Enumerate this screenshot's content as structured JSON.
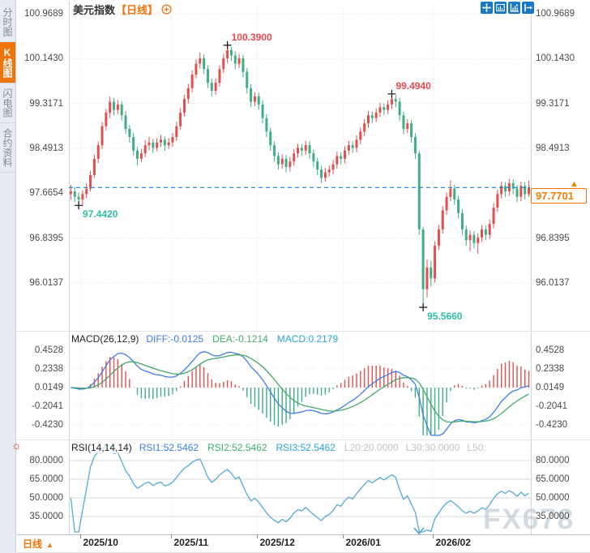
{
  "sidebar": {
    "tabs": [
      {
        "label": "分时图",
        "active": false
      },
      {
        "label": "K线图",
        "active": true
      },
      {
        "label": "闪电图",
        "active": false
      },
      {
        "label": "合约资料",
        "active": false
      }
    ]
  },
  "header": {
    "symbol": "美元指数",
    "period_tag": "【日线】",
    "toolbar_icons": [
      "move-icon",
      "zoom-area-icon",
      "scale-chart-icon",
      "exit-chart-icon"
    ],
    "add_icon": "plus-circle-icon"
  },
  "price_tag": {
    "text": "97.7701",
    "arrow": "▲"
  },
  "bottom_bar": {
    "period_label": "日线",
    "period_arrow": "▲"
  },
  "watermark": "FX678",
  "indicators": {
    "macd": {
      "name": "MACD(26,12,9)",
      "diff_label": "DIFF:-0.0125",
      "dea_label": "DEA:-0.1214",
      "macd_label": "MACD:0.2179",
      "axis_labels": [
        "0.4528",
        "0.2338",
        "0.0149",
        "-0.2041",
        "-0.4230"
      ]
    },
    "rsi": {
      "name": "RSI(14,14,14)",
      "rsi1_label": "RSI1:52.5462",
      "rsi2_label": "RSI2:52.5462",
      "rsi3_label": "RSI3:52.5462",
      "l20_label": "L20:20.0000",
      "l30_label": "L30:30.0000",
      "l50_label": "L50:",
      "axis_labels": [
        "80.0000",
        "65.0000",
        "50.0000",
        "35.0000"
      ]
    }
  },
  "chart_data": {
    "type": "candlestick",
    "title": "美元指数",
    "timeframe": "日线",
    "current_price": 97.7701,
    "y_axis_labels": [
      "100.9689",
      "100.1430",
      "99.3171",
      "98.4913",
      "97.6654",
      "96.8395",
      "96.0137"
    ],
    "months": [
      {
        "label": "2025/10",
        "index": 3
      },
      {
        "label": "2025/11",
        "index": 26
      },
      {
        "label": "2025/12",
        "index": 48
      },
      {
        "label": "2026/01",
        "index": 70
      },
      {
        "label": "2026/02",
        "index": 93
      }
    ],
    "annotations": [
      {
        "index": 40,
        "price": 100.39,
        "label": "100.3900",
        "color": "red",
        "pos": "above"
      },
      {
        "index": 82,
        "price": 99.494,
        "label": "99.4940",
        "color": "red",
        "pos": "above"
      },
      {
        "index": 2,
        "price": 97.442,
        "label": "97.4420",
        "color": "green",
        "pos": "below"
      },
      {
        "index": 90,
        "price": 95.566,
        "label": "95.5660",
        "color": "green",
        "pos": "below"
      }
    ],
    "colors": {
      "up": "#e0504e",
      "down": "#3fae87",
      "price_line": "#1f7fd6",
      "diff_line": "#3f7de8",
      "dea_line": "#43a969",
      "rsi_line": "#55aad5",
      "accent": "#f0730a"
    },
    "rsi_gridlines": [
      80,
      65,
      50,
      35
    ],
    "candles": [
      [
        97.65,
        97.82,
        97.55,
        97.7
      ],
      [
        97.7,
        97.78,
        97.5,
        97.6
      ],
      [
        97.6,
        97.68,
        97.442,
        97.55
      ],
      [
        97.55,
        97.72,
        97.45,
        97.65
      ],
      [
        97.65,
        97.85,
        97.58,
        97.75
      ],
      [
        97.75,
        98.08,
        97.7,
        98.0
      ],
      [
        98.0,
        98.38,
        97.95,
        98.3
      ],
      [
        98.3,
        98.62,
        98.22,
        98.55
      ],
      [
        98.55,
        98.98,
        98.48,
        98.9
      ],
      [
        98.9,
        99.22,
        98.82,
        99.15
      ],
      [
        99.15,
        99.45,
        99.05,
        99.35
      ],
      [
        99.35,
        99.42,
        99.1,
        99.2
      ],
      [
        99.2,
        99.38,
        99.12,
        99.3
      ],
      [
        99.3,
        99.36,
        99.0,
        99.1
      ],
      [
        99.1,
        99.18,
        98.76,
        98.85
      ],
      [
        98.85,
        98.92,
        98.6,
        98.7
      ],
      [
        98.7,
        98.78,
        98.36,
        98.45
      ],
      [
        98.45,
        98.52,
        98.18,
        98.3
      ],
      [
        98.3,
        98.48,
        98.24,
        98.4
      ],
      [
        98.4,
        98.64,
        98.33,
        98.55
      ],
      [
        98.55,
        98.7,
        98.46,
        98.6
      ],
      [
        98.6,
        98.67,
        98.4,
        98.5
      ],
      [
        98.5,
        98.68,
        98.44,
        98.6
      ],
      [
        98.6,
        98.74,
        98.52,
        98.65
      ],
      [
        98.65,
        98.71,
        98.45,
        98.55
      ],
      [
        98.55,
        98.68,
        98.48,
        98.6
      ],
      [
        98.6,
        98.78,
        98.52,
        98.7
      ],
      [
        98.7,
        98.98,
        98.63,
        98.9
      ],
      [
        98.9,
        99.23,
        98.83,
        99.15
      ],
      [
        99.15,
        99.48,
        99.08,
        99.4
      ],
      [
        99.4,
        99.68,
        99.32,
        99.6
      ],
      [
        99.6,
        99.93,
        99.52,
        99.85
      ],
      [
        99.85,
        100.13,
        99.78,
        100.05
      ],
      [
        100.05,
        100.25,
        99.96,
        100.15
      ],
      [
        100.15,
        100.22,
        99.86,
        99.95
      ],
      [
        99.95,
        100.02,
        99.6,
        99.7
      ],
      [
        99.7,
        99.78,
        99.45,
        99.55
      ],
      [
        99.55,
        99.78,
        99.48,
        99.7
      ],
      [
        99.7,
        100.02,
        99.63,
        99.95
      ],
      [
        99.95,
        100.23,
        99.88,
        100.15
      ],
      [
        100.15,
        100.39,
        100.06,
        100.3
      ],
      [
        100.3,
        100.36,
        100.1,
        100.2
      ],
      [
        100.2,
        100.28,
        99.95,
        100.05
      ],
      [
        100.05,
        100.23,
        99.97,
        100.15
      ],
      [
        100.15,
        100.21,
        99.8,
        99.9
      ],
      [
        99.9,
        99.97,
        99.5,
        99.6
      ],
      [
        99.6,
        99.67,
        99.25,
        99.35
      ],
      [
        99.35,
        99.53,
        99.27,
        99.45
      ],
      [
        99.45,
        99.52,
        99.2,
        99.3
      ],
      [
        99.3,
        99.37,
        98.95,
        99.05
      ],
      [
        99.05,
        99.12,
        98.7,
        98.8
      ],
      [
        98.8,
        98.87,
        98.45,
        98.55
      ],
      [
        98.55,
        98.62,
        98.25,
        98.35
      ],
      [
        98.35,
        98.42,
        98.1,
        98.2
      ],
      [
        98.2,
        98.38,
        98.12,
        98.3
      ],
      [
        98.3,
        98.37,
        98.05,
        98.15
      ],
      [
        98.15,
        98.33,
        98.07,
        98.25
      ],
      [
        98.25,
        98.48,
        98.17,
        98.4
      ],
      [
        98.4,
        98.58,
        98.32,
        98.5
      ],
      [
        98.5,
        98.57,
        98.35,
        98.45
      ],
      [
        98.45,
        98.63,
        98.37,
        98.55
      ],
      [
        98.55,
        98.62,
        98.3,
        98.4
      ],
      [
        98.4,
        98.47,
        98.15,
        98.25
      ],
      [
        98.25,
        98.32,
        98.0,
        98.1
      ],
      [
        98.1,
        98.17,
        97.85,
        97.95
      ],
      [
        97.95,
        98.13,
        97.88,
        98.05
      ],
      [
        98.05,
        98.18,
        97.97,
        98.1
      ],
      [
        98.1,
        98.28,
        98.02,
        98.2
      ],
      [
        98.2,
        98.43,
        98.12,
        98.35
      ],
      [
        98.35,
        98.42,
        98.2,
        98.3
      ],
      [
        98.3,
        98.53,
        98.22,
        98.45
      ],
      [
        98.45,
        98.63,
        98.37,
        98.55
      ],
      [
        98.55,
        98.62,
        98.4,
        98.5
      ],
      [
        98.5,
        98.73,
        98.42,
        98.65
      ],
      [
        98.65,
        98.88,
        98.57,
        98.8
      ],
      [
        98.8,
        99.03,
        98.72,
        98.95
      ],
      [
        98.95,
        99.18,
        98.87,
        99.1
      ],
      [
        99.1,
        99.17,
        98.95,
        99.05
      ],
      [
        99.05,
        99.23,
        98.97,
        99.15
      ],
      [
        99.15,
        99.33,
        99.07,
        99.25
      ],
      [
        99.25,
        99.32,
        99.1,
        99.2
      ],
      [
        99.2,
        99.38,
        99.12,
        99.3
      ],
      [
        99.3,
        99.494,
        99.22,
        99.4
      ],
      [
        99.4,
        99.47,
        99.25,
        99.35
      ],
      [
        99.35,
        99.42,
        99.0,
        99.1
      ],
      [
        99.1,
        99.17,
        98.75,
        98.85
      ],
      [
        98.85,
        99.03,
        98.77,
        98.95
      ],
      [
        98.95,
        99.02,
        98.6,
        98.7
      ],
      [
        98.7,
        98.77,
        98.3,
        98.4
      ],
      [
        98.4,
        98.45,
        96.9,
        97.0
      ],
      [
        97.0,
        97.05,
        95.566,
        95.9
      ],
      [
        95.9,
        96.45,
        95.75,
        96.3
      ],
      [
        96.3,
        96.42,
        95.95,
        96.1
      ],
      [
        96.1,
        96.78,
        96.02,
        96.7
      ],
      [
        96.7,
        97.08,
        96.62,
        97.0
      ],
      [
        97.0,
        97.43,
        96.92,
        97.35
      ],
      [
        97.35,
        97.68,
        97.27,
        97.6
      ],
      [
        97.6,
        97.9,
        97.52,
        97.75
      ],
      [
        97.75,
        97.82,
        97.45,
        97.55
      ],
      [
        97.55,
        97.62,
        97.2,
        97.3
      ],
      [
        97.3,
        97.37,
        96.9,
        97.0
      ],
      [
        97.0,
        97.07,
        96.7,
        96.8
      ],
      [
        96.8,
        96.98,
        96.6,
        96.9
      ],
      [
        96.9,
        96.97,
        96.65,
        96.75
      ],
      [
        96.75,
        96.93,
        96.55,
        96.85
      ],
      [
        96.85,
        97.08,
        96.77,
        97.0
      ],
      [
        97.0,
        97.07,
        96.8,
        96.9
      ],
      [
        96.9,
        97.18,
        96.82,
        97.1
      ],
      [
        97.1,
        97.48,
        97.02,
        97.4
      ],
      [
        97.4,
        97.73,
        97.32,
        97.65
      ],
      [
        97.65,
        97.88,
        97.57,
        97.8
      ],
      [
        97.8,
        97.87,
        97.6,
        97.7
      ],
      [
        97.7,
        97.93,
        97.62,
        97.85
      ],
      [
        97.85,
        97.92,
        97.65,
        97.75
      ],
      [
        97.75,
        97.82,
        97.5,
        97.6
      ],
      [
        97.6,
        97.88,
        97.52,
        97.8
      ],
      [
        97.8,
        97.87,
        97.55,
        97.65
      ],
      [
        97.65,
        97.9,
        97.6,
        97.7701
      ]
    ]
  }
}
